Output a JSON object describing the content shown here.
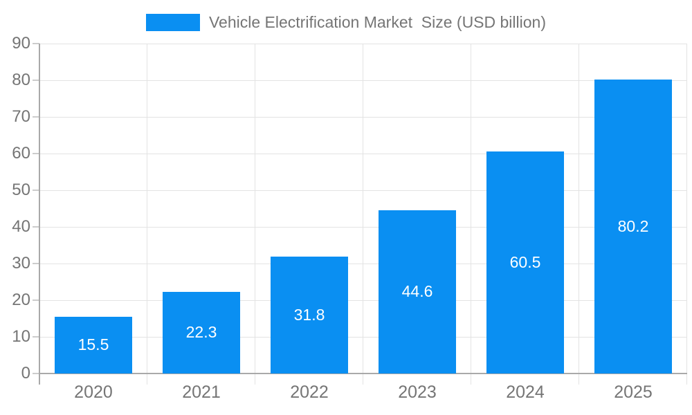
{
  "chart_data": {
    "type": "bar",
    "title": "Vehicle Electrification Market  Size (USD billion)",
    "legend_label": "Vehicle Electrification Market  Size (USD billion)",
    "legend_position": "top-center",
    "categories": [
      "2020",
      "2021",
      "2022",
      "2023",
      "2024",
      "2025"
    ],
    "values": [
      15.5,
      22.3,
      31.8,
      44.6,
      60.5,
      80.2
    ],
    "value_labels": [
      "15.5",
      "22.3",
      "31.8",
      "44.6",
      "60.5",
      "80.2"
    ],
    "xlabel": "",
    "ylabel": "",
    "ylim": [
      0,
      90
    ],
    "ytick_step": 10,
    "ytick_labels": [
      "0",
      "10",
      "20",
      "30",
      "40",
      "50",
      "60",
      "70",
      "80",
      "90"
    ],
    "grid": "on",
    "colors": {
      "bar": "#0A8FF2",
      "grid_line": "#e3e3e3",
      "axis_line": "#a9a9a9",
      "tick_mark": "#cccccc",
      "axis_text": "#757575",
      "value_text": "#ffffff",
      "background": "#ffffff"
    }
  }
}
